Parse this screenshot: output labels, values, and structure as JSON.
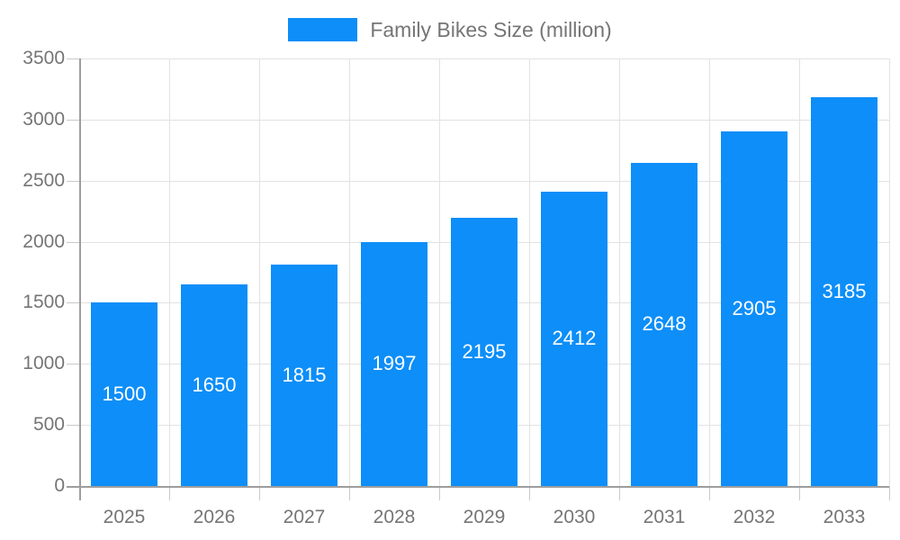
{
  "chart_data": {
    "type": "bar",
    "title": "Family Bikes Size (million)",
    "legend": {
      "position": "top-center",
      "label": "Family Bikes Size (million)"
    },
    "categories": [
      "2025",
      "2026",
      "2027",
      "2028",
      "2029",
      "2030",
      "2031",
      "2032",
      "2033"
    ],
    "values": [
      1500,
      1650,
      1815,
      1997,
      2195,
      2412,
      2648,
      2905,
      3185
    ],
    "value_labels_shown": true,
    "xlabel": "",
    "ylabel": "",
    "ylim": [
      0,
      3500
    ],
    "y_ticks": [
      0,
      500,
      1000,
      1500,
      2000,
      2500,
      3000,
      3500
    ],
    "grid": "on",
    "colors": {
      "bar": "#0D8EF8",
      "axis_label": "#757575",
      "value_label": "#ffffff",
      "grid_line": "#e2e2e2",
      "axis_line": "#9e9e9e",
      "tick_mark": "#c9c9c9"
    }
  }
}
